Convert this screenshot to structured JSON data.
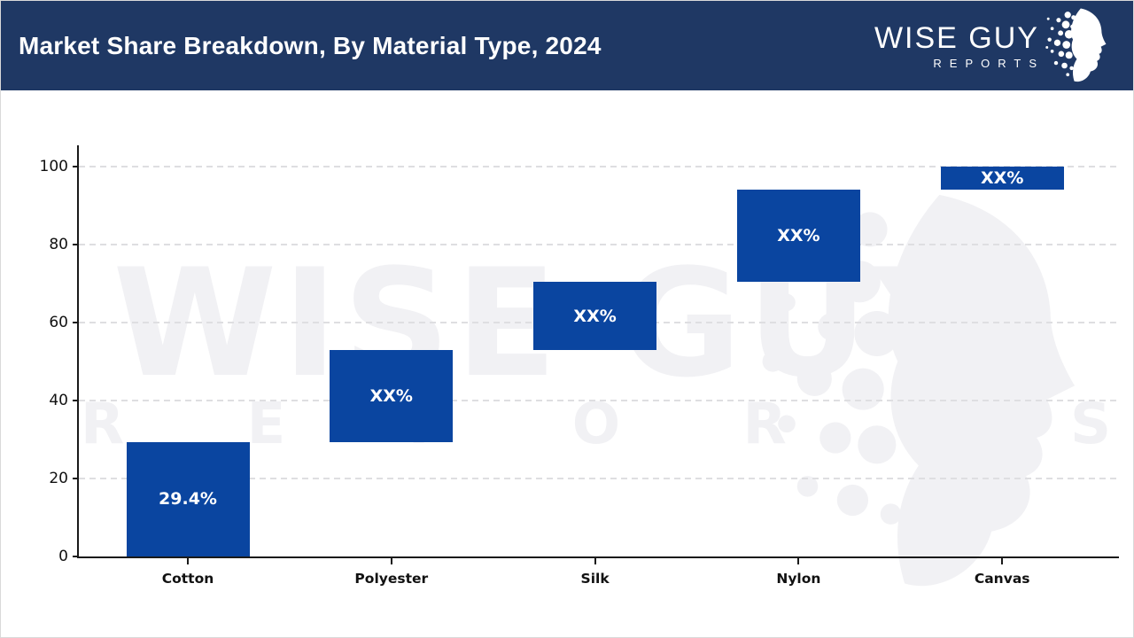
{
  "header": {
    "title": "Market Share Breakdown, By Material Type, 2024",
    "bg_color": "#1f3864",
    "logo": {
      "line1": "WISE GUY",
      "line2": "REPORTS"
    }
  },
  "watermark": {
    "line1": "WISE GUY",
    "line2": "REPORTS"
  },
  "chart_data": {
    "type": "bar",
    "subtype": "waterfall",
    "title": "Market Share Breakdown, By Material Type, 2024",
    "xlabel": "",
    "ylabel": "",
    "categories": [
      "Cotton",
      "Polyester",
      "Silk",
      "Nylon",
      "Canvas"
    ],
    "segments": [
      {
        "category": "Cotton",
        "start": 0,
        "end": 29.4,
        "increment": 29.4,
        "value_label": "29.4%"
      },
      {
        "category": "Polyester",
        "start": 29.4,
        "end": 52.9,
        "increment": 23.5,
        "value_label": "XX%"
      },
      {
        "category": "Silk",
        "start": 52.9,
        "end": 70.5,
        "increment": 17.6,
        "value_label": "XX%"
      },
      {
        "category": "Nylon",
        "start": 70.5,
        "end": 94.2,
        "increment": 23.7,
        "value_label": "XX%"
      },
      {
        "category": "Canvas",
        "start": 94.2,
        "end": 100,
        "increment": 5.8,
        "value_label": "XX%"
      }
    ],
    "y_ticks": [
      0,
      20,
      40,
      60,
      80,
      100
    ],
    "ylim": [
      0,
      105.5
    ],
    "bar_color": "#0a45a0",
    "label_color": "#ffffff",
    "grid": "horizontal dashed",
    "grid_color": "#dedee1",
    "legend": "none"
  }
}
